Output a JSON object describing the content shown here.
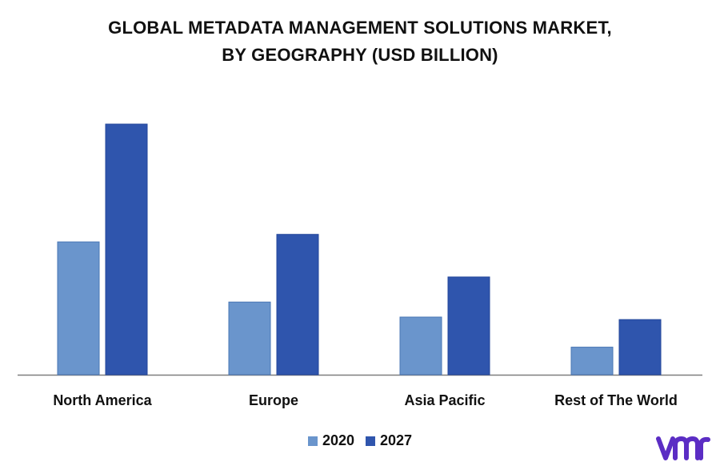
{
  "chart_data": {
    "type": "bar",
    "title_lines": [
      "GLOBAL METADATA MANAGEMENT SOLUTIONS MARKET,",
      "BY GEOGRAPHY (USD BILLION)"
    ],
    "categories": [
      "North America",
      "Europe",
      "Asia Pacific",
      "Rest of The World"
    ],
    "series": [
      {
        "name": "2020",
        "color": "#6a95cc",
        "values": [
          5.3,
          2.9,
          2.3,
          1.1
        ]
      },
      {
        "name": "2027",
        "color": "#2f55ad",
        "values": [
          10.0,
          5.6,
          3.9,
          2.2
        ]
      }
    ],
    "ylim": [
      0,
      10
    ],
    "grid": false,
    "legend_position": "bottom"
  },
  "branding": {
    "logo_text": "vmr",
    "logo_color": "#5b2dc4"
  }
}
